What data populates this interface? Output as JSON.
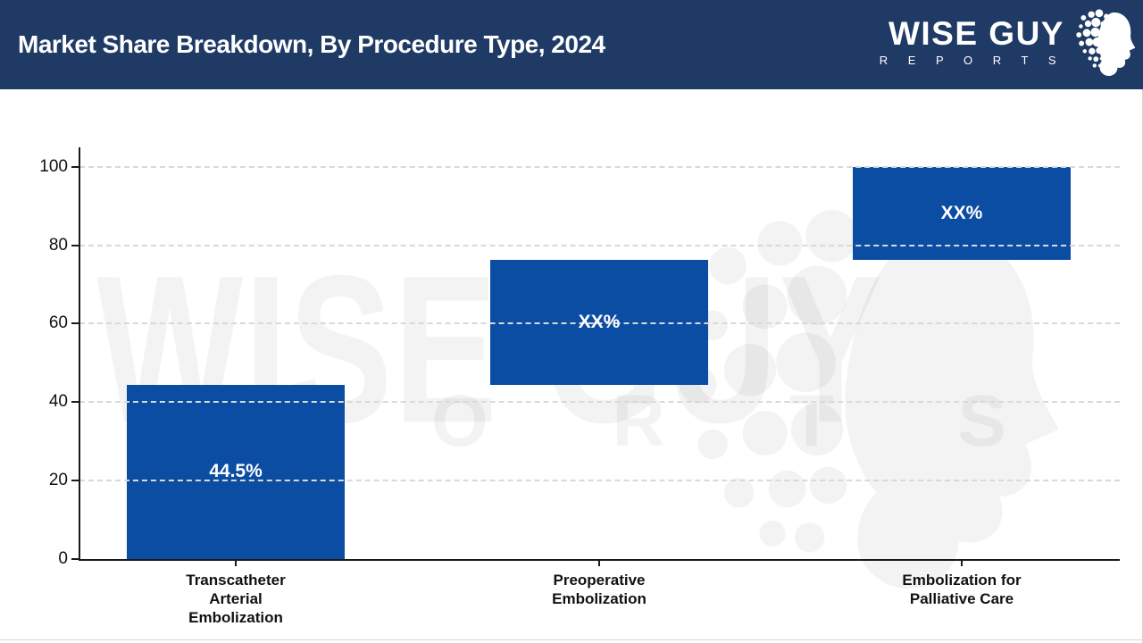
{
  "header": {
    "title": "Market Share Breakdown, By Procedure Type, 2024",
    "brand": {
      "line1": "WISE GUY",
      "line2": "R E P O R T S"
    }
  },
  "watermark": {
    "line1": "WISE GUY",
    "line2": "R O R T S"
  },
  "chart_data": {
    "type": "bar",
    "subtype": "waterfall-style floating segments",
    "title": "Market Share Breakdown, By Procedure Type, 2024",
    "xlabel": "",
    "ylabel": "",
    "ylim": [
      0,
      100
    ],
    "yticks": [
      0,
      20,
      40,
      60,
      80,
      100
    ],
    "grid": "horizontal dashed",
    "legend": "none",
    "bars": [
      {
        "label": "Transcatheter Arterial Embolization",
        "label_lines": [
          "Transcatheter",
          "Arterial",
          "Embolization"
        ],
        "value_label": "44.5%",
        "start": 0,
        "end": 44.5
      },
      {
        "label": "Preoperative Embolization",
        "label_lines": [
          "Preoperative",
          "Embolization"
        ],
        "value_label": "XX%",
        "start": 44.5,
        "end": 76.3
      },
      {
        "label": "Embolization for Palliative Care",
        "label_lines": [
          "Embolization for",
          "Palliative Care"
        ],
        "value_label": "XX%",
        "start": 76.3,
        "end": 100
      }
    ],
    "colors": {
      "bar": "#0B4DA2",
      "header_bg": "#203A66",
      "grid": "#D9D9D9",
      "axis": "#1A1A1A",
      "bar_value_text": "#FFFFFF",
      "title_text": "#FFFFFF"
    }
  }
}
